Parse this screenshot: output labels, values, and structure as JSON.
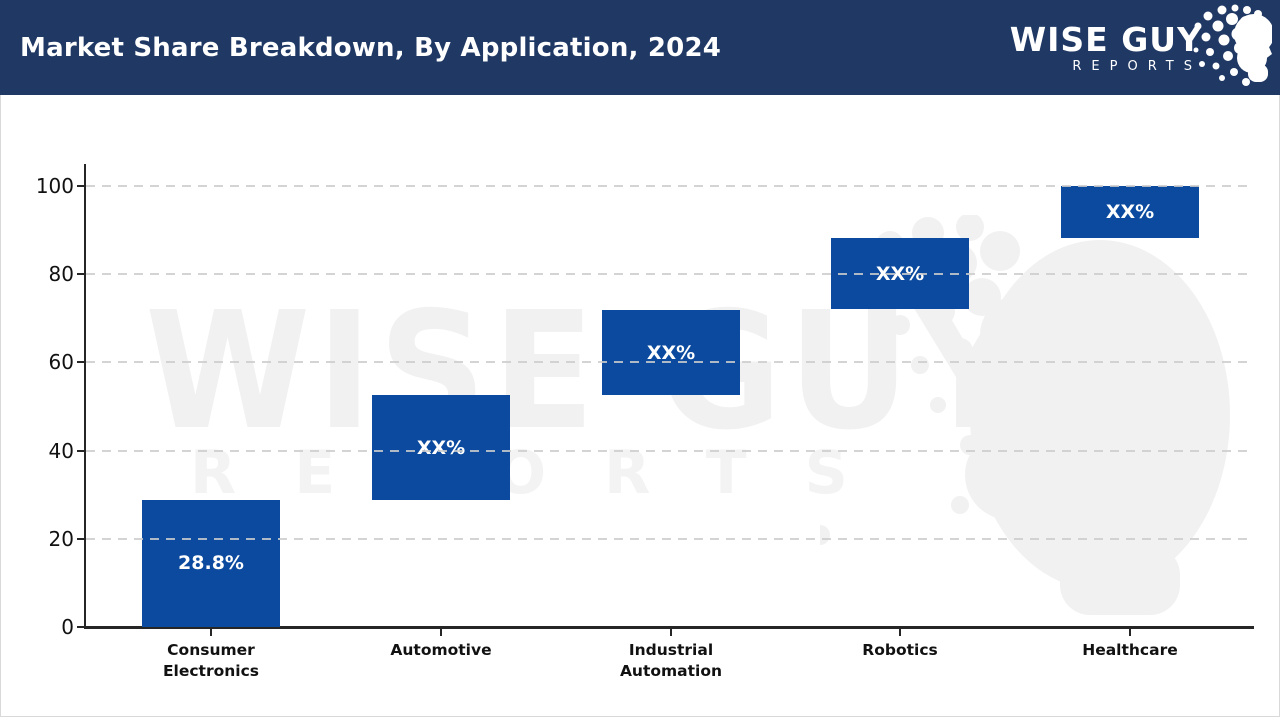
{
  "header": {
    "title": "Market Share Breakdown, By Application, 2024",
    "logo": {
      "name": "WISE GUY",
      "sub": "REPORTS"
    },
    "bg_color": "#1f3864"
  },
  "watermark": {
    "line1": "WISE GUY",
    "line2": "REPORTS"
  },
  "chart_data": {
    "type": "bar",
    "subtype": "waterfall",
    "title": "Market Share Breakdown, By Application, 2024",
    "categories": [
      "Consumer Electronics",
      "Automotive",
      "Industrial Automation",
      "Robotics",
      "Healthcare"
    ],
    "category_label_lines": [
      [
        "Consumer",
        "Electronics"
      ],
      [
        "Automotive"
      ],
      [
        "Industrial",
        "Automation"
      ],
      [
        "Robotics"
      ],
      [
        "Healthcare"
      ]
    ],
    "segments": [
      {
        "category": "Consumer Electronics",
        "start": 0,
        "end": 28.8,
        "label": "28.8%"
      },
      {
        "category": "Automotive",
        "start": 28.8,
        "end": 52.6,
        "label": "XX%"
      },
      {
        "category": "Industrial Automation",
        "start": 52.6,
        "end": 71.8,
        "label": "XX%"
      },
      {
        "category": "Robotics",
        "start": 72.2,
        "end": 88.1,
        "label": "XX%"
      },
      {
        "category": "Healthcare",
        "start": 88.1,
        "end": 100,
        "label": "XX%"
      }
    ],
    "yticks": [
      0,
      20,
      40,
      60,
      80,
      100
    ],
    "ylim": [
      0,
      104.5
    ],
    "xlabel": "",
    "ylabel": "",
    "grid": "horizontal-dashed",
    "legend": "none",
    "bar_color": "#0b4a9e",
    "value_label_color": "#ffffff"
  }
}
